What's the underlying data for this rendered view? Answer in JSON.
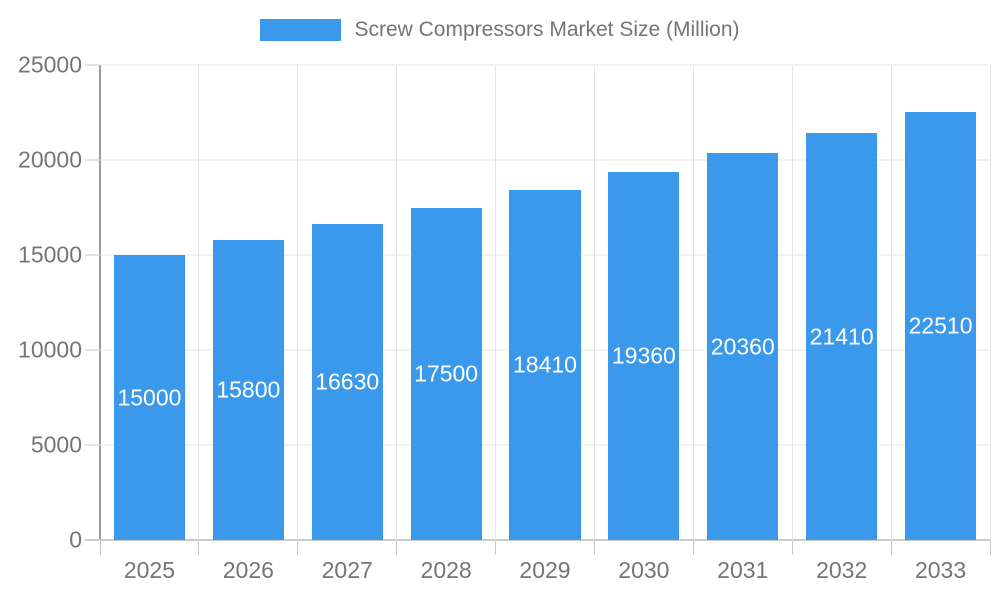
{
  "chart_data": {
    "type": "bar",
    "title": "Screw Compressors Market Size (Million)",
    "categories": [
      "2025",
      "2026",
      "2027",
      "2028",
      "2029",
      "2030",
      "2031",
      "2032",
      "2033"
    ],
    "values": [
      15000,
      15800,
      16630,
      17500,
      18410,
      19360,
      20360,
      21410,
      22510
    ],
    "value_labels": [
      "15000",
      "15800",
      "16630",
      "17500",
      "18410",
      "19360",
      "20360",
      "21410",
      "22510"
    ],
    "xlabel": "",
    "ylabel": "",
    "ylim": [
      0,
      25000
    ],
    "yticks": [
      0,
      5000,
      10000,
      15000,
      20000,
      25000
    ],
    "ytick_labels": [
      "0",
      "5000",
      "10000",
      "15000",
      "20000",
      "25000"
    ],
    "grid": true,
    "legend_position": "top",
    "colors": {
      "bar": "#3B99EC",
      "value_label": "#ffffff",
      "axis_text": "#757575",
      "gridline": "#e6e6e6",
      "tick": "#c9c9c9",
      "y_axis_line": "#9b9b9b",
      "x_axis_line": "#cbcbcb",
      "background": "#ffffff"
    }
  }
}
